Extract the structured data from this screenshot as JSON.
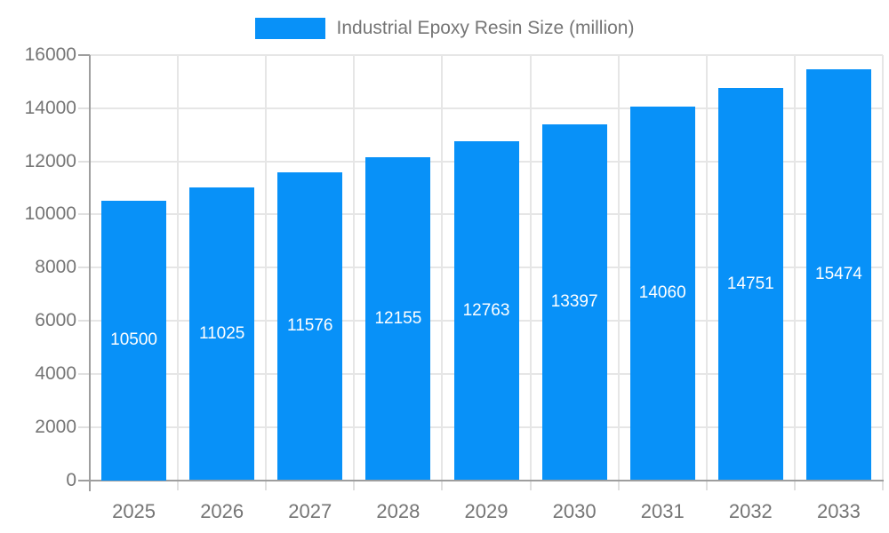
{
  "chart_data": {
    "type": "bar",
    "title": "Industrial Epoxy Resin Size (million)",
    "categories": [
      "2025",
      "2026",
      "2027",
      "2028",
      "2029",
      "2030",
      "2031",
      "2032",
      "2033"
    ],
    "series": [
      {
        "name": "Industrial Epoxy Resin Size (million)",
        "values": [
          10500,
          11025,
          11576,
          12155,
          12763,
          13397,
          14060,
          14751,
          15474
        ]
      }
    ],
    "xlabel": "",
    "ylabel": "",
    "ylim": [
      0,
      16000
    ],
    "yticks": [
      0,
      2000,
      4000,
      6000,
      8000,
      10000,
      12000,
      14000,
      16000
    ],
    "grid": "both",
    "legend_position": "top-center",
    "value_labels": "inside-center-white",
    "colors": {
      "bar": "#0891f8",
      "axis_text": "#757575",
      "grid_line": "#e6e6e6",
      "axis_line": "#9e9e9e",
      "tick_minor": "#e0e0e0",
      "value_label": "#ffffff",
      "background": "#ffffff"
    }
  }
}
